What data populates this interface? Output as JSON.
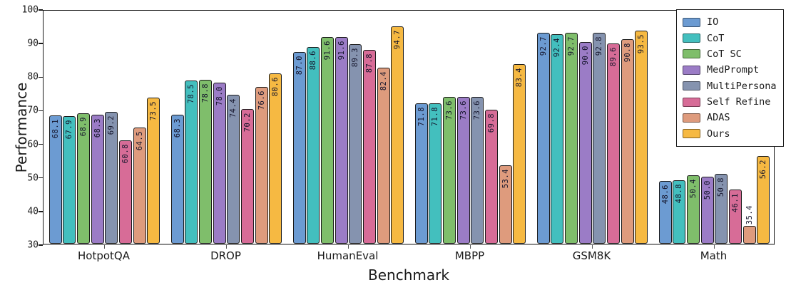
{
  "chart_data": {
    "type": "bar",
    "title": "",
    "xlabel": "Benchmark",
    "ylabel": "Performance",
    "ylim": [
      30,
      100
    ],
    "yticks": [
      30,
      40,
      50,
      60,
      70,
      80,
      90,
      100
    ],
    "grid": false,
    "legend_position": "upper right",
    "value_label_decimals": 1,
    "categories": [
      "HotpotQA",
      "DROP",
      "HumanEval",
      "MBPP",
      "GSM8K",
      "Math"
    ],
    "series": [
      {
        "name": "IO",
        "color": "#6C9BD2",
        "values": [
          68.1,
          68.3,
          87.0,
          71.8,
          92.7,
          48.6
        ]
      },
      {
        "name": "CoT",
        "color": "#43BFBE",
        "values": [
          67.9,
          78.5,
          88.6,
          71.8,
          92.4,
          48.8
        ]
      },
      {
        "name": "CoT SC",
        "color": "#7FBE6B",
        "values": [
          68.9,
          78.8,
          91.6,
          73.6,
          92.7,
          50.4
        ]
      },
      {
        "name": "MedPrompt",
        "color": "#9B7CC6",
        "values": [
          68.3,
          78.0,
          91.6,
          73.6,
          90.0,
          50.0
        ]
      },
      {
        "name": "MultiPersona",
        "color": "#8593AF",
        "values": [
          69.2,
          74.4,
          89.3,
          73.6,
          92.8,
          50.8
        ]
      },
      {
        "name": "Self Refine",
        "color": "#D76C97",
        "values": [
          60.8,
          70.2,
          87.8,
          69.8,
          89.6,
          46.1
        ]
      },
      {
        "name": "ADAS",
        "color": "#DE9B7D",
        "values": [
          64.5,
          76.6,
          82.4,
          53.4,
          90.8,
          35.4
        ]
      },
      {
        "name": "Ours",
        "color": "#F6B942",
        "values": [
          73.5,
          80.6,
          94.7,
          83.4,
          93.5,
          56.2
        ]
      }
    ]
  }
}
